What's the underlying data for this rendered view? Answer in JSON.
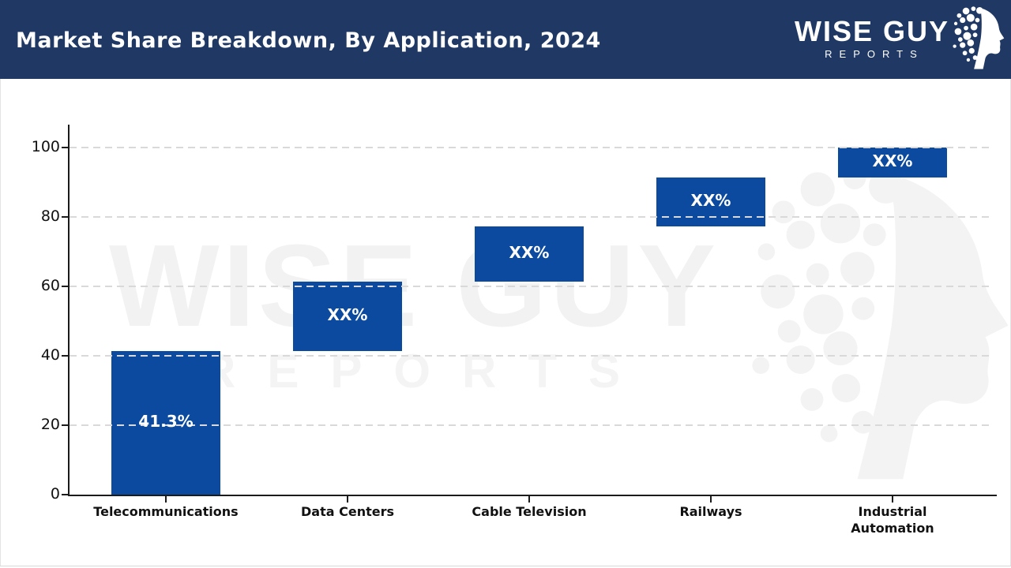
{
  "header": {
    "title": "Market Share Breakdown, By Application, 2024",
    "logo": {
      "line1": "WISE GUY",
      "line2": "REPORTS"
    }
  },
  "watermark": {
    "line1": "WISE GUY",
    "line2": "REPORTS"
  },
  "colors": {
    "header_bg": "#203864",
    "bar_blue": "#0b4a9e",
    "gridline_gray": "#d9d9d9",
    "axis_black": "#1b1b1b",
    "watermark_gray": "#f2f2f2"
  },
  "chart_data": {
    "type": "bar",
    "subtype": "waterfall-style floating bars",
    "title": "Market Share Breakdown, By Application, 2024",
    "categories": [
      "Telecommunications",
      "Data Centers",
      "Cable Television",
      "Railways",
      "Industrial\nAutomation"
    ],
    "bars": [
      {
        "category": "Telecommunications",
        "start": 0,
        "end": 41.3,
        "label": "41.3%"
      },
      {
        "category": "Data Centers",
        "start": 41.3,
        "end": 61.3,
        "label": "XX%"
      },
      {
        "category": "Cable Television",
        "start": 61.3,
        "end": 77.3,
        "label": "XX%"
      },
      {
        "category": "Railways",
        "start": 77.3,
        "end": 91.3,
        "label": "XX%"
      },
      {
        "category": "Industrial Automation",
        "start": 91.3,
        "end": 100,
        "label": "XX%"
      }
    ],
    "yticks": [
      0,
      20,
      40,
      60,
      80,
      100
    ],
    "ylim": [
      0,
      105
    ],
    "xlabel": "",
    "ylabel": "",
    "grid": "horizontal dashed",
    "legend": null,
    "bar_color": "#0b4a9e",
    "bar_label_color": "#ffffff"
  }
}
